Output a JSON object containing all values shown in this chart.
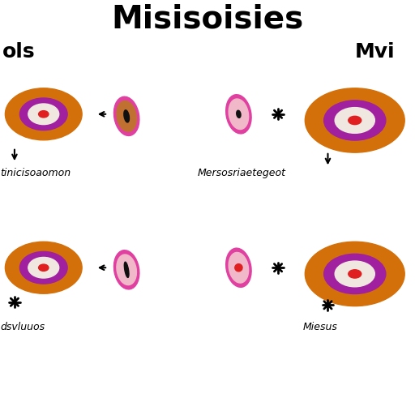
{
  "title": "Misisoisies",
  "bg_color": "#ffffff",
  "title_fontsize": 28,
  "title_fontweight": "bold",
  "subtitle_left": "ols",
  "subtitle_right": "Mvi",
  "subtitle_fontsize": 18,
  "subtitle_fontweight": "bold",
  "label_top_left": "tinicisoaomon",
  "label_top_right": "Mersosriaetegeot",
  "label_bot_left": "dsvluuos",
  "label_bot_right": "Miesus",
  "orange": "#d4700a",
  "purple": "#a020a0",
  "pink_ring": "#e040a0",
  "pink_inner": "#f0b8c8",
  "white_inner": "#f0e8e0",
  "red_dot": "#e02020",
  "dark_dot": "#101010",
  "tan_inner": "#c07030",
  "label_fontsize": 9,
  "label_italic": true
}
